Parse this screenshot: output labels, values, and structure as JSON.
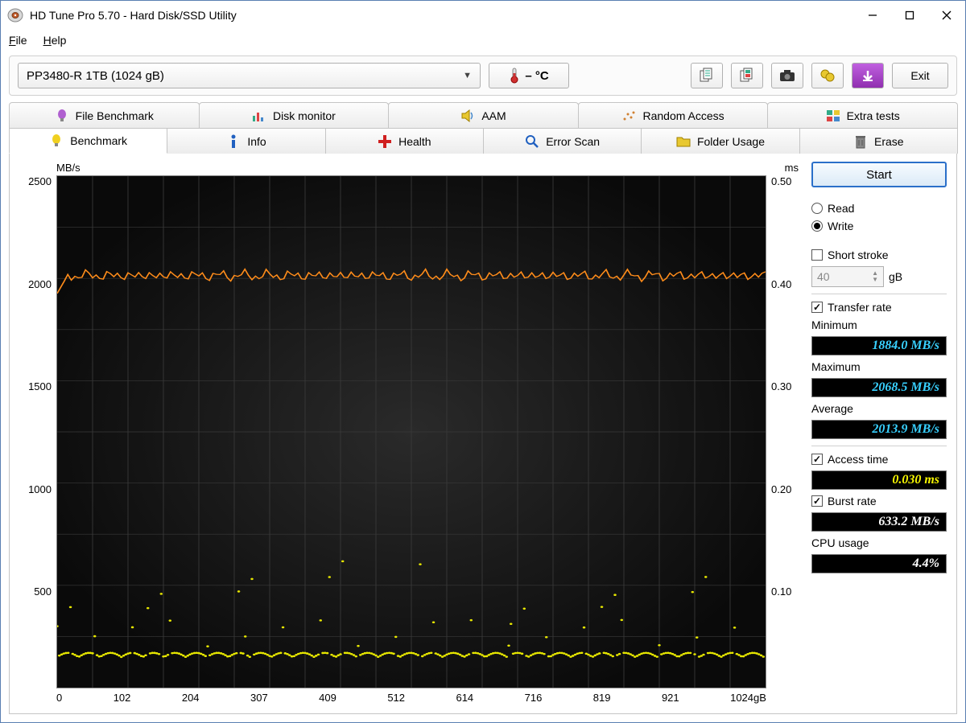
{
  "window": {
    "title": "HD Tune Pro 5.70 - Hard Disk/SSD Utility"
  },
  "menu": {
    "file": "File",
    "help": "Help"
  },
  "toolbar": {
    "drive": "PP3480-R 1TB (1024 gB)",
    "temp": "– °C",
    "exit": "Exit"
  },
  "tabs_row1": [
    {
      "label": "File Benchmark",
      "icon": "bulb-purple"
    },
    {
      "label": "Disk monitor",
      "icon": "bars"
    },
    {
      "label": "AAM",
      "icon": "speaker"
    },
    {
      "label": "Random Access",
      "icon": "dots"
    },
    {
      "label": "Extra tests",
      "icon": "grid"
    }
  ],
  "tabs_row2": [
    {
      "label": "Benchmark",
      "icon": "bulb-yellow",
      "active": true
    },
    {
      "label": "Info",
      "icon": "info"
    },
    {
      "label": "Health",
      "icon": "plus"
    },
    {
      "label": "Error Scan",
      "icon": "magnifier"
    },
    {
      "label": "Folder Usage",
      "icon": "folder"
    },
    {
      "label": "Erase",
      "icon": "trash"
    }
  ],
  "chart": {
    "y_left_label": "MB/s",
    "y_right_label": "ms",
    "x_unit": "gB",
    "y_left_ticks": [
      "2500",
      "2000",
      "1500",
      "1000",
      "500",
      ""
    ],
    "y_right_ticks": [
      "0.50",
      "0.40",
      "0.30",
      "0.20",
      "0.10",
      ""
    ],
    "x_ticks": [
      "0",
      "102",
      "204",
      "307",
      "409",
      "512",
      "614",
      "716",
      "819",
      "921",
      "1024"
    ],
    "y_left_max": 2500,
    "y_right_max": 0.5,
    "x_max": 1024,
    "transfer_color": "#ff8c1a",
    "access_color": "#e8e800",
    "grid_color": "#3a3a3a",
    "bg_center": "#2a2a2a",
    "bg_edge": "#0a0a0a",
    "transfer_mean": 2013.9,
    "access_mean_ms": 0.03
  },
  "side": {
    "start": "Start",
    "read": "Read",
    "write": "Write",
    "write_selected": true,
    "short_stroke": "Short stroke",
    "short_stroke_checked": false,
    "short_stroke_value": "40",
    "short_stroke_unit": "gB",
    "transfer_rate": "Transfer rate",
    "transfer_rate_checked": true,
    "min_label": "Minimum",
    "min_value": "1884.0 MB/s",
    "max_label": "Maximum",
    "max_value": "2068.5 MB/s",
    "avg_label": "Average",
    "avg_value": "2013.9 MB/s",
    "access_time": "Access time",
    "access_time_checked": true,
    "access_value": "0.030 ms",
    "burst_rate": "Burst rate",
    "burst_rate_checked": true,
    "burst_value": "633.2 MB/s",
    "cpu_label": "CPU usage",
    "cpu_value": "4.4%"
  }
}
